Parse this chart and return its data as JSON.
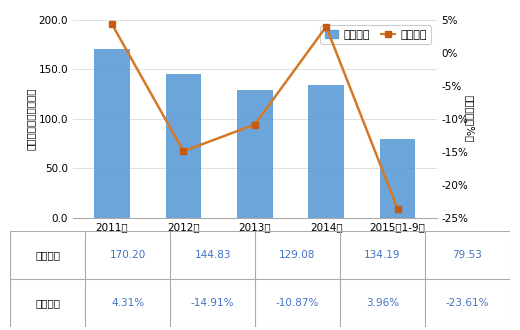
{
  "categories": [
    "2011年",
    "2012年",
    "2013年",
    "2014年",
    "2015年1-9月"
  ],
  "bar_values": [
    170.2,
    144.83,
    129.08,
    134.19,
    79.53
  ],
  "line_values": [
    4.31,
    -14.91,
    -10.87,
    3.96,
    -23.61
  ],
  "bar_color": "#5b9bd5",
  "line_color": "#d47928",
  "marker_color": "#c55a11",
  "left_ylabel": "进口金额（百万美元）",
  "right_ylabel": "同比增长（%）",
  "left_ylim": [
    0,
    200
  ],
  "left_yticks": [
    0.0,
    50.0,
    100.0,
    150.0,
    200.0
  ],
  "right_ylim": [
    -25,
    5
  ],
  "right_yticks": [
    -25,
    -20,
    -15,
    -10,
    -5,
    0,
    5
  ],
  "right_yticklabels": [
    "-25%",
    "-20%",
    "-15%",
    "-10%",
    "-5%",
    "0%",
    "5%"
  ],
  "legend_bar_label": "进口金额",
  "legend_line_label": "同比增长",
  "table_row1_label": "进口金额",
  "table_row2_label": "同比增长",
  "table_row1_values": [
    "170.20",
    "144.83",
    "129.08",
    "134.19",
    "79.53"
  ],
  "table_row2_values": [
    "4.31%",
    "-14.91%",
    "-10.87%",
    "3.96%",
    "-23.61%"
  ],
  "bg_color": "#ffffff",
  "plot_bg_color": "#ffffff",
  "grid_color": "#e0e0e0",
  "table_val_color": "#4472c4",
  "table_border_color": "#aaaaaa",
  "figsize": [
    5.2,
    3.3
  ],
  "dpi": 100
}
